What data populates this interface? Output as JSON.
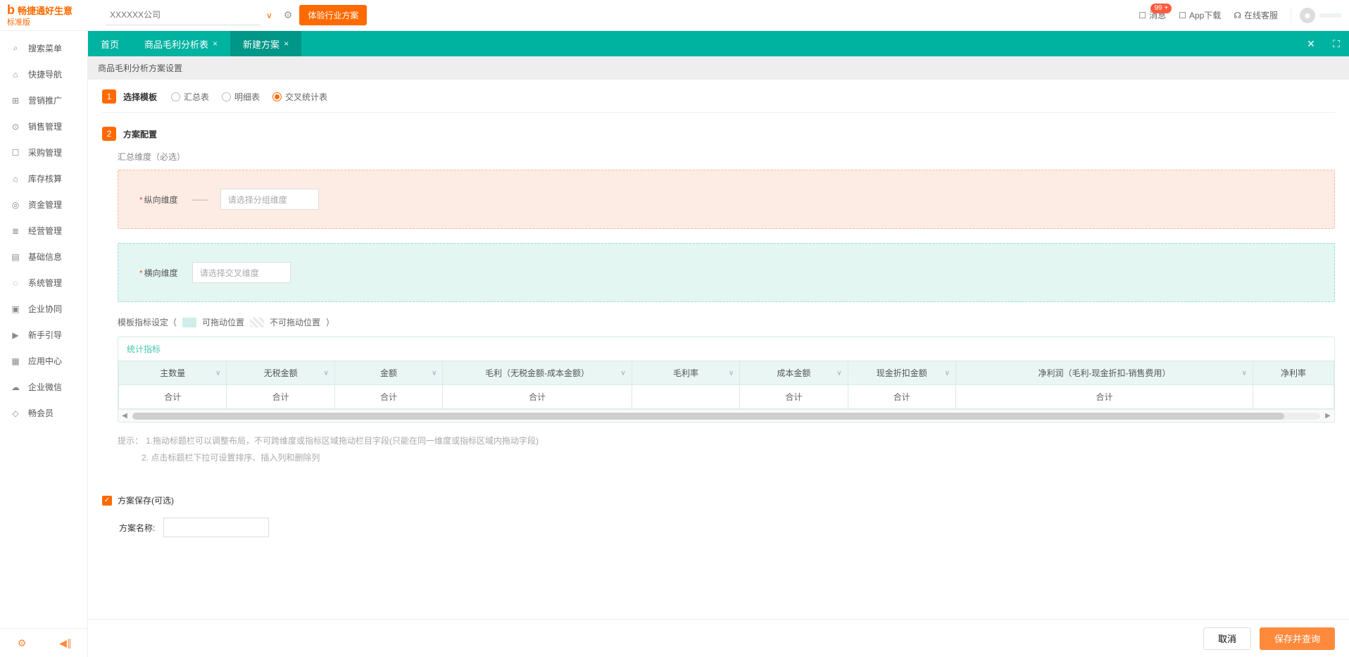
{
  "brand": {
    "logo_text": "畅捷通好生意",
    "sub": "标准版",
    "logo_letter": "b"
  },
  "company": {
    "placeholder": "XXXXXX公司"
  },
  "top_buttons": {
    "experience": "体验行业方案"
  },
  "top_right": {
    "msg": "消息",
    "msg_badge": "99 +",
    "app": "App下载",
    "service": "在线客服",
    "user": " "
  },
  "sidebar": {
    "items": [
      {
        "icon": "search",
        "label": "搜索菜单"
      },
      {
        "icon": "home",
        "label": "快捷导航"
      },
      {
        "icon": "gift",
        "label": "营销推广"
      },
      {
        "icon": "cart",
        "label": "销售管理"
      },
      {
        "icon": "bag",
        "label": "采购管理"
      },
      {
        "icon": "house",
        "label": "库存核算"
      },
      {
        "icon": "money",
        "label": "资金管理"
      },
      {
        "icon": "chart",
        "label": "经营管理"
      },
      {
        "icon": "doc",
        "label": "基础信息"
      },
      {
        "icon": "sys",
        "label": "系统管理"
      },
      {
        "icon": "team",
        "label": "企业协同"
      },
      {
        "icon": "new",
        "label": "新手引导"
      },
      {
        "icon": "apps",
        "label": "应用中心"
      },
      {
        "icon": "wechat",
        "label": "企业微信"
      },
      {
        "icon": "vip",
        "label": "畅会员"
      }
    ]
  },
  "tabs": [
    {
      "label": "首页",
      "closable": false,
      "active": false
    },
    {
      "label": "商品毛利分析表",
      "closable": true,
      "active": false
    },
    {
      "label": "新建方案",
      "closable": true,
      "active": true
    }
  ],
  "subheader": "商品毛利分析方案设置",
  "step1": {
    "num": "1",
    "title": "选择模板",
    "options": [
      "汇总表",
      "明细表",
      "交叉统计表"
    ],
    "selected": 2
  },
  "step2": {
    "num": "2",
    "title": "方案配置"
  },
  "summary_label": "汇总维度（必选）",
  "dim_vertical": {
    "label": "纵向维度",
    "placeholder": "请选择分组维度"
  },
  "dim_horizontal": {
    "label": "横向维度",
    "placeholder": "请选择交叉维度"
  },
  "legend": {
    "title": "模板指标设定（",
    "drag": "可拖动位置",
    "nodrag": "不可拖动位置",
    "close": "）"
  },
  "table": {
    "section_label": "统计指标",
    "columns": [
      "主数量",
      "无税金额",
      "金额",
      "毛利（无税金额-成本金额）",
      "毛利率",
      "成本金额",
      "现金折扣金额",
      "净利润（毛利-现金折扣-销售费用）",
      "净利率"
    ],
    "dropdown_on": [
      true,
      true,
      true,
      true,
      true,
      true,
      true,
      true,
      false
    ],
    "row_label": "合计"
  },
  "hints": {
    "label": "提示：",
    "l1": "1.拖动标题栏可以调整布局，不可跨维度或指标区域拖动栏目字段(只能在同一维度或指标区域内拖动字段)",
    "l2": "2. 点击标题栏下拉可设置排序、插入列和删除列"
  },
  "save": {
    "checkbox_label": "方案保存(可选)",
    "name_label": "方案名称:"
  },
  "actions": {
    "cancel": "取消",
    "save_query": "保存并查询"
  },
  "icons": {
    "search": "⌕",
    "home": "⌂",
    "gift": "⊞",
    "cart": "⊙",
    "bag": "☐",
    "house": "⌂",
    "money": "◎",
    "chart": "≣",
    "doc": "▤",
    "sys": "◌",
    "team": "▣",
    "new": "▶",
    "apps": "▦",
    "wechat": "☁",
    "vip": "◇",
    "msg": "☐",
    "phone": "☐",
    "headset": "☊",
    "user": "☻",
    "gear": "⚙",
    "collapse": "⇤",
    "close": "✕",
    "expand": "⛶",
    "chev_down": "∨"
  },
  "colors": {
    "brand": "#ff6a00",
    "teal": "#00b3a1",
    "teal_dark": "#009688",
    "dim_v_bg": "#fdece3",
    "dim_v_border": "#f9b99a",
    "dim_h_bg": "#e3f6f2",
    "dim_h_border": "#9edccf",
    "th_bg": "#e9f6f3",
    "primary_btn": "#ff8a3c"
  }
}
